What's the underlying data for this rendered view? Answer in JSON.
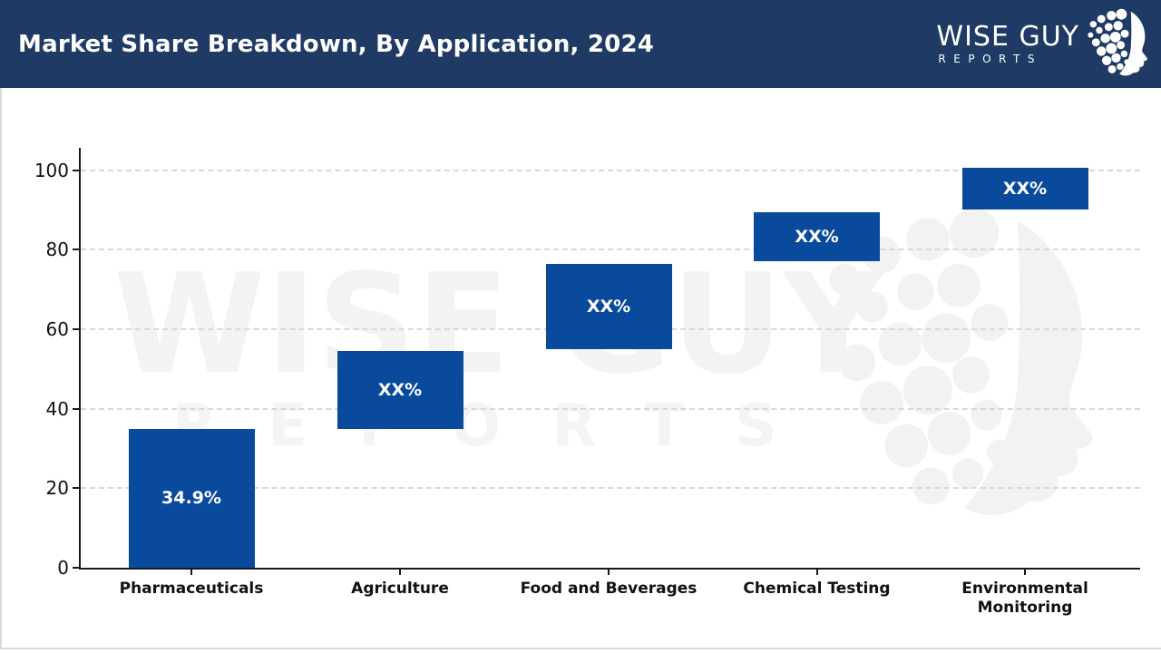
{
  "header": {
    "title": "Market Share Breakdown, By Application, 2024",
    "logo": {
      "line1": "WISE GUY",
      "line2": "REPORTS",
      "face_icon": "face-profile-dots-icon"
    }
  },
  "watermark": {
    "line1": "WISE GUY",
    "line2": "REPORTS",
    "face_icon": "face-profile-dots-icon"
  },
  "colors": {
    "header_bg": "#1f3a64",
    "bar": "#0a4a9d",
    "bar_label_text": "#ffffff",
    "axis": "#1a1a1a",
    "grid": "#d8d8d8",
    "watermark": "#f3f3f3",
    "title_text": "#ffffff",
    "hairline": "#d9d9d9"
  },
  "chart_data": {
    "type": "bar",
    "subtype": "waterfall",
    "title": "Market Share Breakdown, By Application, 2024",
    "categories": [
      "Pharmaceuticals",
      "Agriculture",
      "Food and Beverages",
      "Chemical Testing",
      "Environmental Monitoring"
    ],
    "segments": [
      {
        "category": "Pharmaceuticals",
        "start": 0,
        "end": 35,
        "label": "34.9%"
      },
      {
        "category": "Agriculture",
        "start": 35,
        "end": 54.5,
        "label": "XX%"
      },
      {
        "category": "Food and Beverages",
        "start": 55,
        "end": 76.5,
        "label": "XX%"
      },
      {
        "category": "Chemical Testing",
        "start": 77,
        "end": 89.5,
        "label": "XX%"
      },
      {
        "category": "Environmental Monitoring",
        "start": 90,
        "end": 100.5,
        "label": "XX%"
      }
    ],
    "yticks": [
      0,
      20,
      40,
      60,
      80,
      100
    ],
    "ylim": [
      0,
      105
    ],
    "xlabel": "",
    "ylabel": "",
    "grid": "dashed-horizontal",
    "legend": "none",
    "bar_color": "#0a4a9d"
  }
}
